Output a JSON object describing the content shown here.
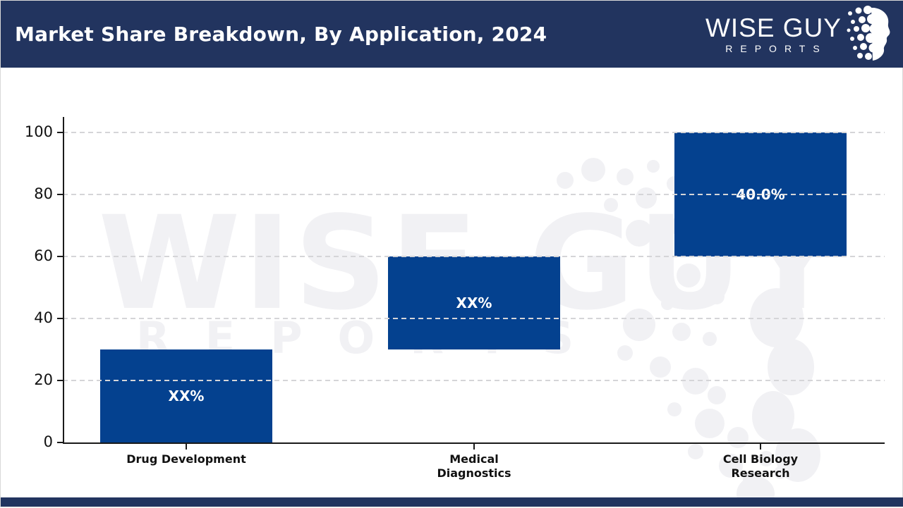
{
  "header": {
    "title": "Market Share Breakdown, By Application, 2024",
    "bg_color": "#22345f",
    "logo": {
      "line1": "WISE GUY",
      "line2": "REPORTS"
    }
  },
  "watermark": {
    "line1": "WISE GUY",
    "line2": "REPORTS"
  },
  "chart_data": {
    "type": "bar",
    "variant": "floating-waterfall",
    "title": "Market Share Breakdown, By Application, 2024",
    "categories": [
      [
        "Drug Development"
      ],
      [
        "Medical",
        "Diagnostics"
      ],
      [
        "Cell Biology",
        "Research"
      ]
    ],
    "segments": [
      {
        "category": "Drug Development",
        "start": 0,
        "end": 30,
        "label": "XX%"
      },
      {
        "category": "Medical Diagnostics",
        "start": 30,
        "end": 60,
        "label": "XX%"
      },
      {
        "category": "Cell Biology Research",
        "start": 60,
        "end": 100,
        "label": "40.0%"
      }
    ],
    "xlabel": "",
    "ylabel": "",
    "ylim": [
      0,
      100
    ],
    "yticks": [
      0,
      20,
      40,
      60,
      80,
      100
    ],
    "grid": "dashed-horizontal-over-bars",
    "legend": "none",
    "bar_color": "#04418f",
    "axis_color": "#1a1a1a",
    "grid_color": "#d5d5d8"
  },
  "footer": {
    "bg_color": "#22345f"
  }
}
